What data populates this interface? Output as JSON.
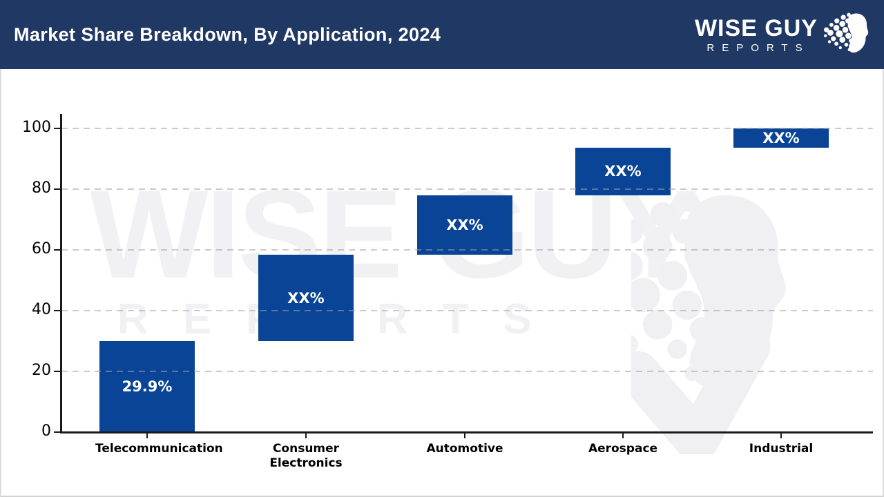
{
  "header": {
    "title": "Market Share Breakdown, By Application, 2024",
    "logo": {
      "line1": "WISE GUY",
      "line2": "REPORTS"
    }
  },
  "watermark": {
    "line1": "WISE GUY",
    "line2": "REPORTS"
  },
  "colors": {
    "header_bg": "#203864",
    "bar": "#0a4496",
    "axis": "#1a1a1a",
    "grid": "#d6d6d6",
    "title_text": "#ffffff",
    "bar_label_text": "#ffffff",
    "watermark": "#f1f1f3"
  },
  "chart_data": {
    "type": "bar",
    "variant": "waterfall",
    "title": "Market Share Breakdown, By Application, 2024",
    "categories": [
      "Telecommunication",
      "Consumer Electronics",
      "Automotive",
      "Aerospace",
      "Industrial"
    ],
    "segments": [
      {
        "category": "Telecommunication",
        "start": 0,
        "end": 29.9,
        "label": "29.9%"
      },
      {
        "category": "Consumer Electronics",
        "start": 29.9,
        "end": 58.3,
        "label": "XX%"
      },
      {
        "category": "Automotive",
        "start": 58.3,
        "end": 78.0,
        "label": "XX%"
      },
      {
        "category": "Aerospace",
        "start": 78.0,
        "end": 93.6,
        "label": "XX%"
      },
      {
        "category": "Industrial",
        "start": 93.6,
        "end": 100.0,
        "label": "XX%"
      }
    ],
    "yticks": [
      0,
      20,
      40,
      60,
      80,
      100
    ],
    "ylim": [
      0,
      105
    ],
    "xlabel": "",
    "ylabel": "",
    "grid": "horizontal-dashed",
    "legend": "none",
    "bar_color": "#0a4496",
    "label_color": "#ffffff"
  }
}
